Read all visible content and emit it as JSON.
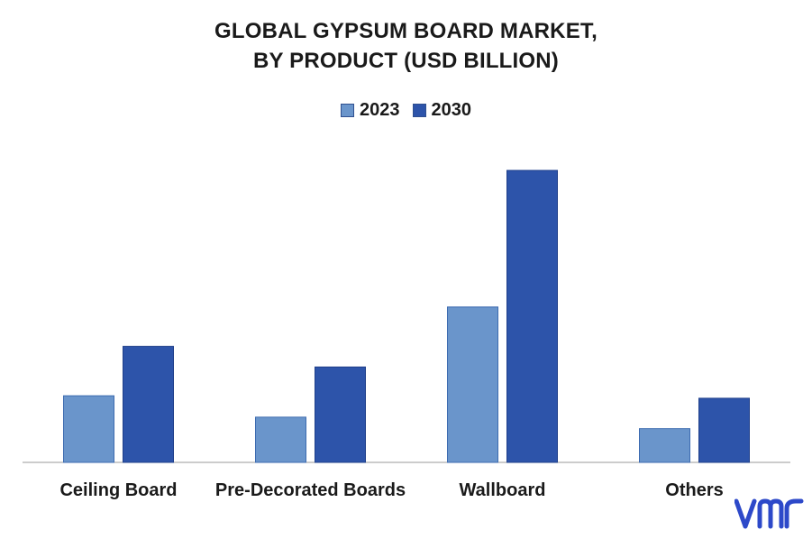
{
  "chart_data": {
    "type": "bar",
    "title_lines": [
      "GLOBAL GYPSUM BOARD MARKET,",
      "BY PRODUCT (USD BILLION)"
    ],
    "categories": [
      "Ceiling Board",
      "Pre-Decorated Boards",
      "Wallboard",
      "Others"
    ],
    "series": [
      {
        "name": "2023",
        "color": "#6a95cb",
        "values": [
          8.1,
          5.5,
          18.9,
          4.1
        ]
      },
      {
        "name": "2030",
        "color": "#2d54aa",
        "values": [
          14.1,
          11.6,
          35.5,
          7.8
        ]
      }
    ],
    "ylim": [
      0,
      40
    ],
    "grid": false,
    "legend_position": "top-center"
  },
  "logo": {
    "name": "vmr-logo",
    "color": "#2d49c9"
  }
}
